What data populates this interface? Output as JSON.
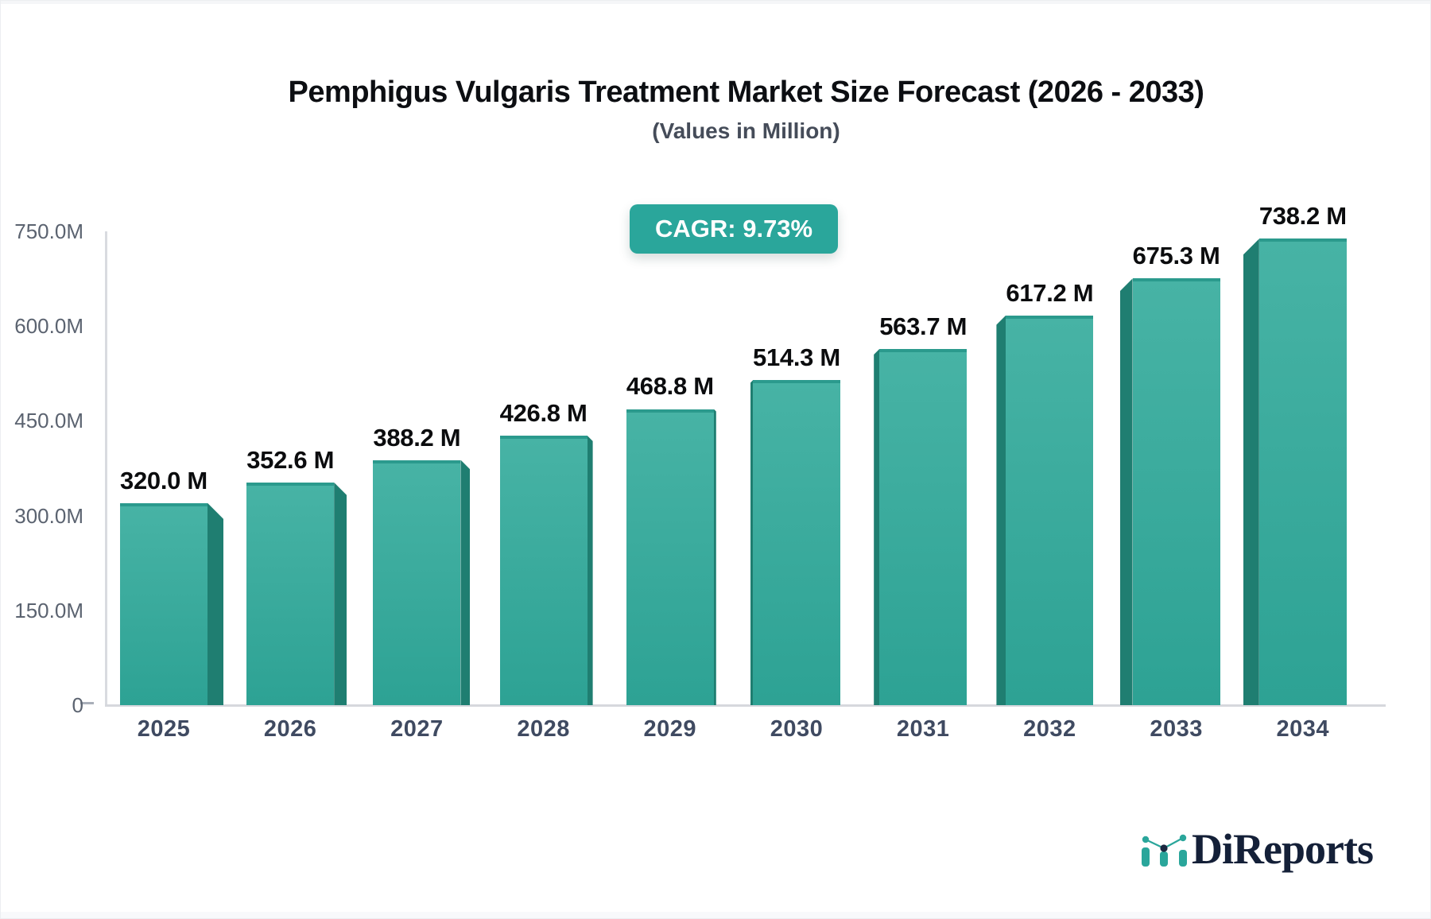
{
  "header": {
    "title": "Pemphigus Vulgaris Treatment Market Size Forecast (2026 - 2033)",
    "subtitle": "(Values in Million)",
    "cagr_label": "CAGR: 9.73%"
  },
  "chart_data": {
    "type": "bar",
    "title": "Pemphigus Vulgaris Treatment Market Size Forecast (2026 - 2033)",
    "subtitle": "(Values in Million)",
    "cagr": "9.73%",
    "categories": [
      "2025",
      "2026",
      "2027",
      "2028",
      "2029",
      "2030",
      "2031",
      "2032",
      "2033",
      "2034"
    ],
    "values": [
      320.0,
      352.6,
      388.2,
      426.8,
      468.8,
      514.3,
      563.7,
      617.2,
      675.3,
      738.2
    ],
    "value_labels": [
      "320.0 M",
      "352.6 M",
      "388.2 M",
      "426.8 M",
      "468.8 M",
      "514.3 M",
      "563.7 M",
      "617.2 M",
      "675.3 M",
      "738.2 M"
    ],
    "xlabel": "",
    "ylabel": "",
    "ylim": [
      0,
      750
    ],
    "y_ticks": [
      "750.0M",
      "600.0M",
      "450.0M",
      "300.0M",
      "150.0M",
      "0"
    ],
    "grid": false,
    "legend_position": "none",
    "style": "3d-perspective-bars",
    "colors": {
      "bar_front_top": "#47b3a5",
      "bar_front_bottom": "#2da294",
      "bar_top_edge": "#2b9a8d",
      "bar_side": "#1f7e71",
      "badge": "#2aa69b",
      "axis_line": "#d9dbe0",
      "y_label": "#5b6370",
      "x_label": "#3f4a61",
      "value_label": "#0b0c0e"
    }
  },
  "footer": {
    "brand": "DiReports",
    "brand_icon": "bar-line-chart-icon"
  }
}
